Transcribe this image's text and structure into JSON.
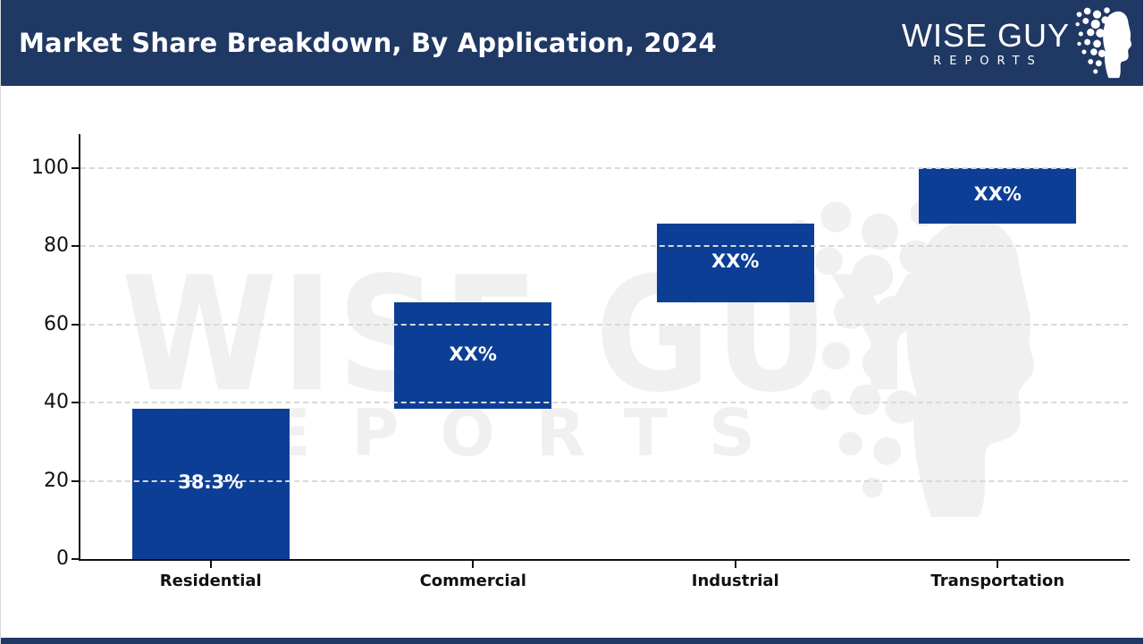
{
  "header": {
    "title": "Market Share Breakdown, By Application, 2024",
    "logo": {
      "name": "WISE GUY",
      "sub": "REPORTS"
    }
  },
  "watermark": {
    "name": "WISE GUY",
    "sub": "REPORTS"
  },
  "colors": {
    "header_bg": "#203864",
    "bar": "#0c3e96",
    "grid": "#d9d9d9",
    "axis": "#111111",
    "watermark": "#f0f0f0",
    "bar_label": "#ffffff"
  },
  "chart_data": {
    "type": "bar",
    "subtype": "waterfall-breakdown",
    "title": "Market Share Breakdown, By Application, 2024",
    "categories": [
      "Residential",
      "Commercial",
      "Industrial",
      "Transportation"
    ],
    "segments": [
      {
        "category": "Residential",
        "start": 0,
        "end": 38.3,
        "value": 38.3,
        "label": "38.3%"
      },
      {
        "category": "Commercial",
        "start": 38.3,
        "end": 65.6,
        "value": 27.3,
        "label": "XX%"
      },
      {
        "category": "Industrial",
        "start": 65.6,
        "end": 85.7,
        "value": 20.1,
        "label": "XX%"
      },
      {
        "category": "Transportation",
        "start": 85.7,
        "end": 100,
        "value": 14.3,
        "label": "XX%"
      }
    ],
    "y_ticks": [
      0,
      20,
      40,
      60,
      80,
      100
    ],
    "ylim": [
      0,
      108
    ],
    "xlabel": "",
    "ylabel": "",
    "grid": "horizontal-dashed-on-top",
    "legend": "none"
  }
}
